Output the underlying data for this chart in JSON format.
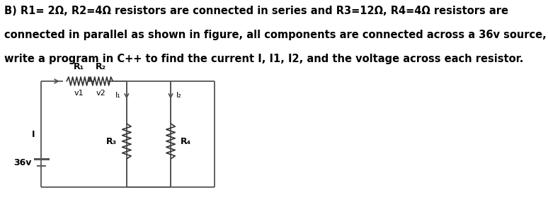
{
  "title_line1": "B) R1= 2Ω, R2=4Ω resistors are connected in series and R3=12Ω, R4=4Ω resistors are",
  "title_line2": "connected in parallel as shown in figure, all components are connected across a 36v source,",
  "title_line3": "write a program in C++ to find the current I, I1, I2, and the voltage across each resistor.",
  "text_color": "#000000",
  "bg_color": "#ffffff",
  "font_size": 10.5,
  "circuit": {
    "r1_label": "R₁",
    "r2_label": "R₂",
    "r3_label": "R₃",
    "r4_label": "R₄",
    "v1_label": "v1",
    "v2_label": "v2",
    "i_label": "I",
    "i1_label": "I₁",
    "i2_label": "I₂",
    "v36_label": "36v"
  }
}
